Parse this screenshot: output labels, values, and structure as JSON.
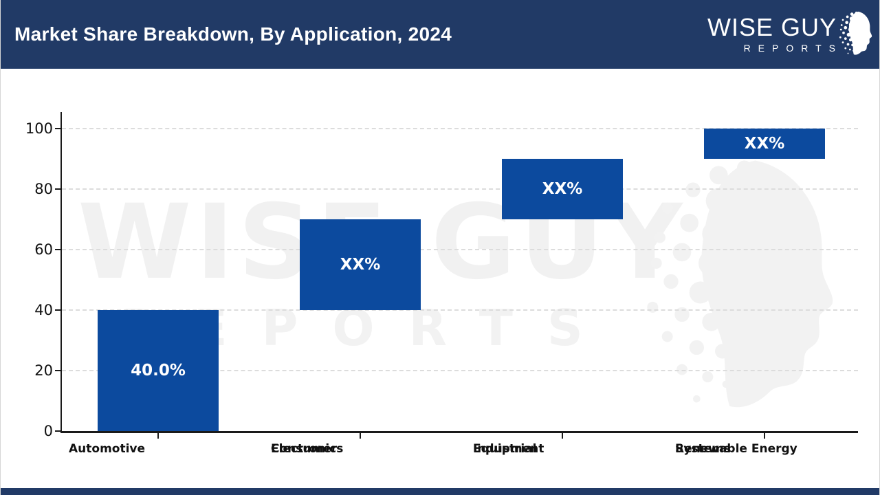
{
  "header": {
    "title": "Market Share Breakdown, By Application, 2024",
    "logo": {
      "primary": "WISE GUY",
      "secondary": "REPORTS"
    }
  },
  "watermark": {
    "line1": "WISE GUY",
    "line2": "REPORTS"
  },
  "colors": {
    "header_bg": "#213a66",
    "footer_bg": "#213a66",
    "bar": "#0c4a9e",
    "bar_label": "#ffffff",
    "grid": "#dcdcdc",
    "axis": "#1a1a1a",
    "watermark": "#f1f1f1"
  },
  "chart_data": {
    "type": "bar",
    "variant": "waterfall",
    "title": "Market Share Breakdown, By Application, 2024",
    "categories": [
      "Automotive",
      "Consumer Electronics",
      "Industrial Equipment",
      "Renewable Energy Systems"
    ],
    "category_lines": [
      [
        "Automotive"
      ],
      [
        "Consumer",
        "Electronics"
      ],
      [
        "Industrial",
        "Equipment"
      ],
      [
        "Renewable Energy",
        "Systems"
      ]
    ],
    "segments": [
      {
        "category": "Automotive",
        "start": 0,
        "end": 40,
        "label": "40.0%"
      },
      {
        "category": "Consumer Electronics",
        "start": 40,
        "end": 70,
        "label": "XX%"
      },
      {
        "category": "Industrial Equipment",
        "start": 70,
        "end": 90,
        "label": "XX%"
      },
      {
        "category": "Renewable Energy Systems",
        "start": 90,
        "end": 100,
        "label": "XX%"
      }
    ],
    "ylim": [
      0,
      100
    ],
    "yticks": [
      0,
      20,
      40,
      60,
      80,
      100
    ],
    "grid": "horizontal-dashed",
    "legend": null
  }
}
